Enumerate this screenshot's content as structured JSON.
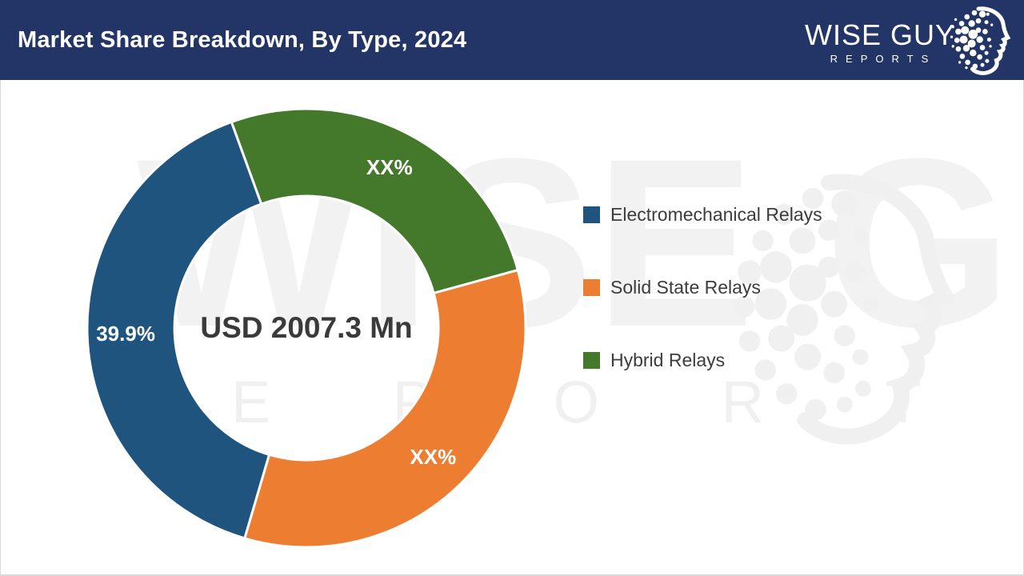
{
  "header": {
    "title": "Market Share Breakdown, By Type, 2024",
    "logo": {
      "line1": "WISE GUY",
      "line2": "REPORTS"
    }
  },
  "watermark": {
    "line1": "WISE GUY",
    "line2": "E P O R T S"
  },
  "chart_data": {
    "type": "pie",
    "subtype": "donut",
    "title": "Market Share Breakdown, By Type, 2024",
    "center_label": "USD 2007.3 Mn",
    "start_angle_deg": -110,
    "outer_radius": 274,
    "inner_radius": 165,
    "segments": [
      {
        "name": "Hybrid Relays",
        "label": "XX%",
        "value": 26.3,
        "color": "#44782A"
      },
      {
        "name": "Solid State Relays",
        "label": "XX%",
        "value": 33.8,
        "color": "#ED7D31"
      },
      {
        "name": "Electromechanical Relays",
        "label": "39.9%",
        "value": 39.9,
        "color": "#1F547E"
      }
    ],
    "legend_position": "right",
    "legend": [
      {
        "label": "Electromechanical Relays",
        "color": "#1F547E"
      },
      {
        "label": "Solid State Relays",
        "color": "#ED7D31"
      },
      {
        "label": "Hybrid Relays",
        "color": "#44782A"
      }
    ]
  }
}
